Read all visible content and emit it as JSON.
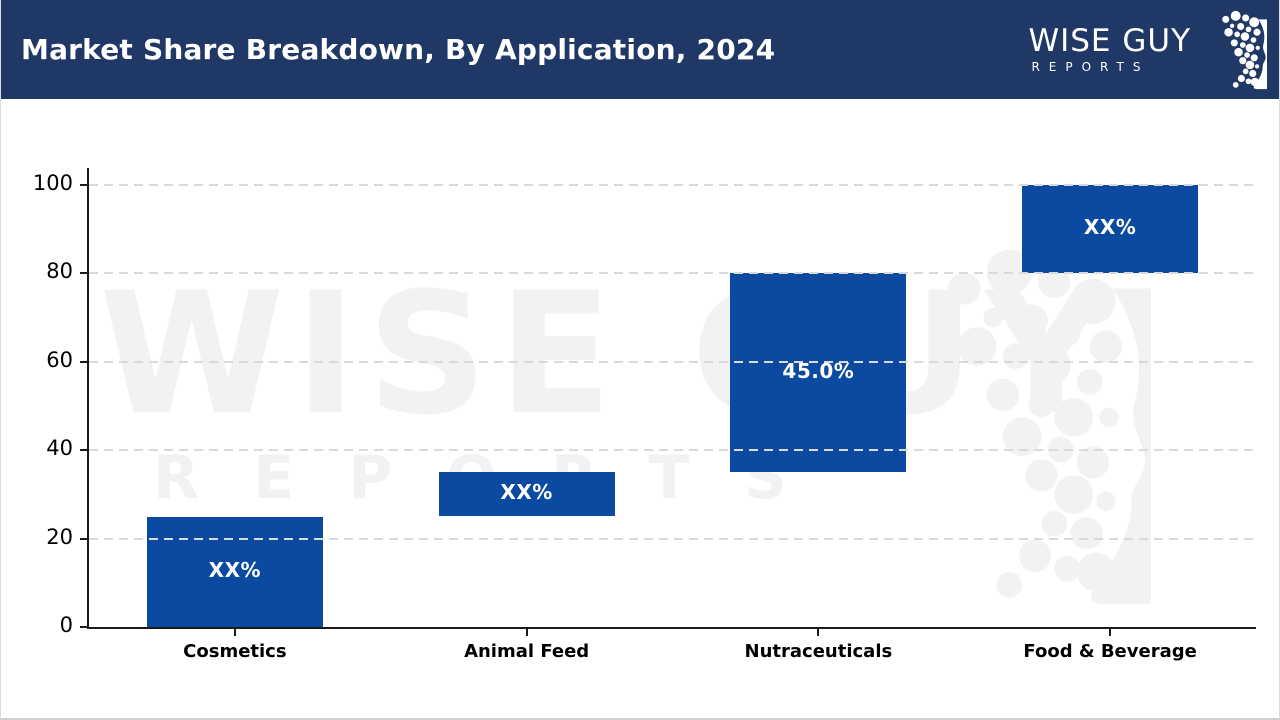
{
  "header": {
    "title": "Market Share Breakdown, By Application, 2024",
    "logo": {
      "wordmark": "WISE GUY",
      "subtitle": "REPORTS"
    }
  },
  "watermark": {
    "line1": "WISE GUY",
    "line2": "REPORTS"
  },
  "chart_data": {
    "type": "bar",
    "subtype": "floating-segment-waterfall",
    "title": "Market Share Breakdown, By Application, 2024",
    "xlabel": "",
    "ylabel": "",
    "categories": [
      "Cosmetics",
      "Animal Feed",
      "Nutraceuticals",
      "Food & Beverage"
    ],
    "series": [
      {
        "name": "Market share (%)",
        "segments": [
          {
            "category": "Cosmetics",
            "from": 0,
            "to": 25,
            "label": "XX%"
          },
          {
            "category": "Animal Feed",
            "from": 25,
            "to": 35,
            "label": "XX%"
          },
          {
            "category": "Nutraceuticals",
            "from": 35,
            "to": 80,
            "label": "45.0%"
          },
          {
            "category": "Food & Beverage",
            "from": 80,
            "to": 100,
            "label": "XX%"
          }
        ]
      }
    ],
    "ylim": [
      0,
      100
    ],
    "yticks": [
      0,
      20,
      40,
      60,
      80,
      100
    ],
    "grid": "horizontal-dashed",
    "legend": "none",
    "colors": {
      "bar": "#0b4aa0",
      "header_bg": "#1f3866",
      "grid": "#d9d9d9",
      "axis": "#1a1a1a",
      "watermark": "#f2f2f2",
      "label_on_bar": "#ffffff"
    }
  }
}
